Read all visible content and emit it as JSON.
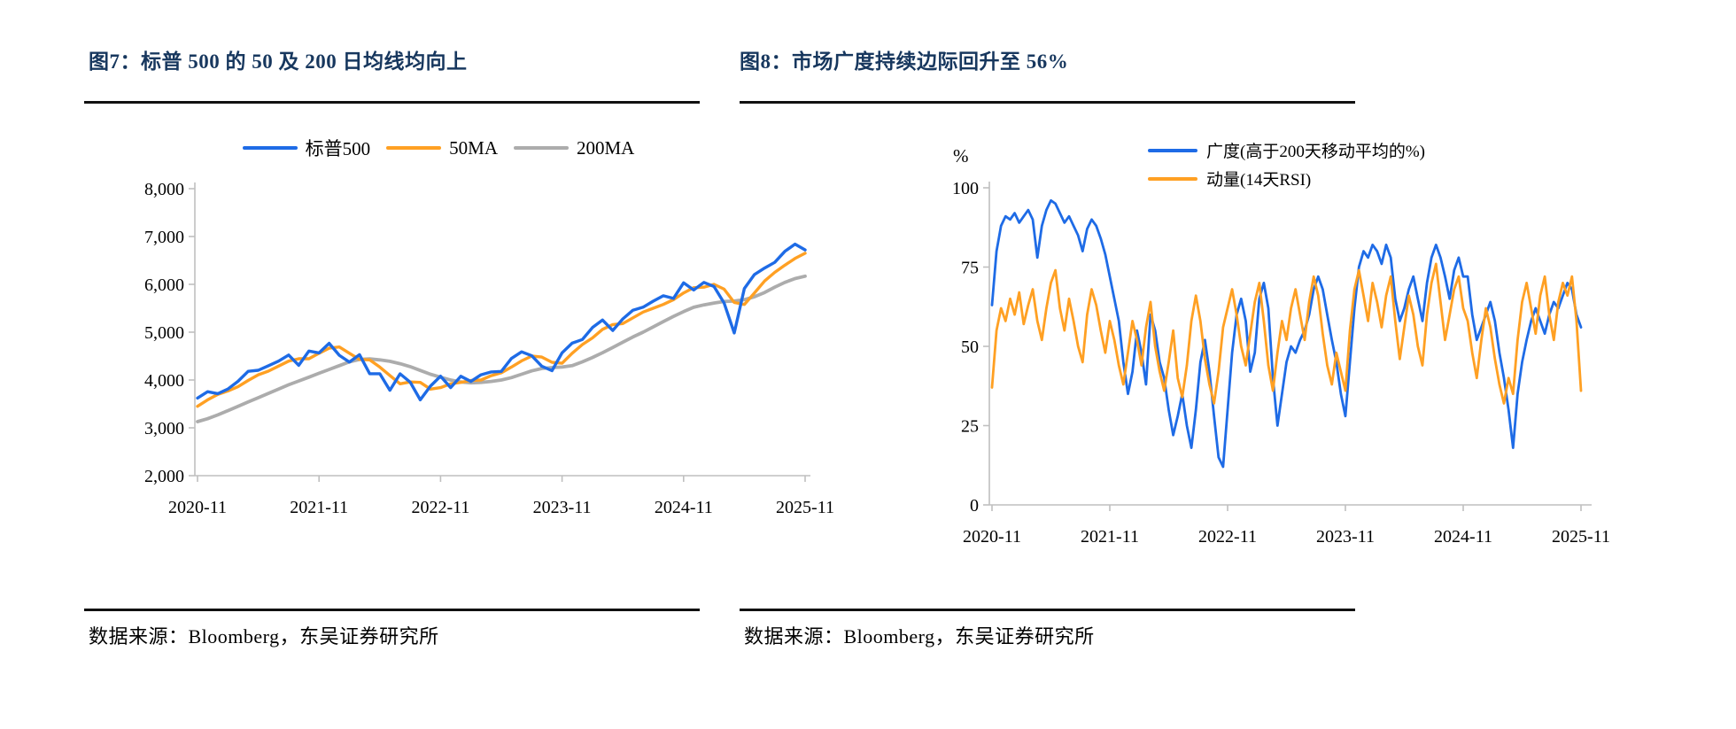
{
  "figure7": {
    "title": "图7：标普 500 的 50 及 200 日均线均向上",
    "source": "数据来源：Bloomberg，东吴证券研究所"
  },
  "figure8": {
    "title": "图8：市场广度持续边际回升至 56%",
    "source": "数据来源：Bloomberg，东吴证券研究所",
    "y_axis_unit": "%"
  },
  "colors": {
    "title_navy": "#17375e",
    "series_blue": "#1e6be6",
    "series_orange": "#ffa023",
    "series_gray": "#acacac",
    "axis_gray": "#bfbfbf",
    "rule_black": "#111111"
  },
  "chart_data": [
    {
      "id": "fig7",
      "type": "line",
      "title": "图7：标普 500 的 50 及 200 日均线均向上",
      "xlabel": "",
      "ylabel": "",
      "x_frequency": "monthly",
      "x_range": "2020-11 to 2025-11",
      "x_tick_labels": [
        "2020-11",
        "2021-11",
        "2022-11",
        "2023-11",
        "2024-11",
        "2025-11"
      ],
      "ylim": [
        2000,
        8000
      ],
      "y_ticks": [
        2000,
        3000,
        4000,
        5000,
        6000,
        7000,
        8000
      ],
      "y_tick_labels": [
        "2,000",
        "3,000",
        "4,000",
        "5,000",
        "6,000",
        "7,000",
        "8,000"
      ],
      "grid": false,
      "legend_position": "top-center",
      "series": [
        {
          "name": "标普500",
          "color": "#1e6be6",
          "width": 3.4,
          "values": [
            3622,
            3756,
            3714,
            3811,
            3973,
            4181,
            4204,
            4298,
            4395,
            4523,
            4308,
            4605,
            4567,
            4766,
            4516,
            4374,
            4530,
            4132,
            4132,
            3785,
            4130,
            3955,
            3586,
            3872,
            4080,
            3840,
            4077,
            3970,
            4109,
            4169,
            4180,
            4450,
            4589,
            4508,
            4288,
            4194,
            4568,
            4770,
            4846,
            5096,
            5254,
            5036,
            5278,
            5460,
            5522,
            5648,
            5762,
            5705,
            6032,
            5882,
            6041,
            5955,
            5612,
            4983,
            5912,
            6205,
            6340,
            6460,
            6688,
            6840,
            6720
          ]
        },
        {
          "name": "50MA",
          "color": "#ffa023",
          "width": 3.4,
          "values": [
            3450,
            3585,
            3700,
            3770,
            3860,
            3990,
            4110,
            4185,
            4290,
            4395,
            4445,
            4445,
            4560,
            4665,
            4690,
            4560,
            4430,
            4420,
            4270,
            4095,
            3920,
            3960,
            3950,
            3810,
            3840,
            3920,
            3950,
            3990,
            4000,
            4090,
            4150,
            4270,
            4400,
            4500,
            4480,
            4370,
            4350,
            4560,
            4740,
            4880,
            5060,
            5160,
            5180,
            5300,
            5420,
            5500,
            5580,
            5680,
            5820,
            5930,
            5940,
            6000,
            5900,
            5620,
            5580,
            5820,
            6070,
            6250,
            6400,
            6540,
            6650
          ]
        },
        {
          "name": "200MA",
          "color": "#acacac",
          "width": 3.8,
          "values": [
            3130,
            3190,
            3270,
            3360,
            3450,
            3540,
            3630,
            3720,
            3810,
            3900,
            3980,
            4060,
            4140,
            4220,
            4300,
            4380,
            4430,
            4440,
            4420,
            4390,
            4340,
            4280,
            4200,
            4120,
            4060,
            4000,
            3960,
            3940,
            3950,
            3970,
            4000,
            4050,
            4120,
            4190,
            4240,
            4260,
            4270,
            4300,
            4380,
            4470,
            4570,
            4680,
            4790,
            4900,
            5000,
            5110,
            5220,
            5330,
            5430,
            5520,
            5570,
            5610,
            5640,
            5650,
            5680,
            5740,
            5830,
            5940,
            6040,
            6120,
            6170
          ]
        }
      ]
    },
    {
      "id": "fig8",
      "type": "line",
      "title": "图8：市场广度持续边际回升至 56%",
      "xlabel": "",
      "ylabel": "%",
      "x_frequency": "biweekly",
      "x_range": "2020-11 to 2025-11",
      "x_tick_labels": [
        "2020-11",
        "2021-11",
        "2022-11",
        "2023-11",
        "2024-11",
        "2025-11"
      ],
      "ylim": [
        0,
        100
      ],
      "y_ticks": [
        0,
        25,
        50,
        75,
        100
      ],
      "y_tick_labels": [
        "0",
        "25",
        "50",
        "75",
        "100"
      ],
      "grid": false,
      "legend_position": "top-right",
      "final_value_breadth_pct": 56,
      "series": [
        {
          "name": "广度(高于200天移动平均的%)",
          "color": "#1e6be6",
          "width": 2.8,
          "values": [
            63,
            80,
            88,
            91,
            90,
            92,
            89,
            91,
            93,
            90,
            78,
            88,
            93,
            96,
            95,
            92,
            89,
            91,
            88,
            85,
            80,
            87,
            90,
            88,
            84,
            79,
            72,
            65,
            58,
            45,
            35,
            42,
            55,
            48,
            38,
            60,
            55,
            45,
            40,
            30,
            22,
            28,
            35,
            25,
            18,
            30,
            45,
            52,
            42,
            28,
            15,
            12,
            30,
            48,
            60,
            65,
            58,
            42,
            48,
            65,
            70,
            62,
            40,
            25,
            35,
            45,
            50,
            48,
            52,
            55,
            60,
            68,
            72,
            68,
            60,
            52,
            45,
            35,
            28,
            45,
            62,
            75,
            80,
            78,
            82,
            80,
            76,
            82,
            78,
            65,
            58,
            62,
            68,
            72,
            65,
            58,
            70,
            78,
            82,
            78,
            72,
            65,
            74,
            78,
            72,
            72,
            60,
            52,
            56,
            60,
            64,
            58,
            48,
            40,
            30,
            18,
            35,
            45,
            52,
            58,
            62,
            58,
            54,
            60,
            64,
            62,
            66,
            70,
            68,
            60,
            56
          ]
        },
        {
          "name": "动量(14天RSI)",
          "color": "#ffa023",
          "width": 2.8,
          "values": [
            37,
            55,
            62,
            58,
            65,
            60,
            67,
            57,
            63,
            68,
            58,
            52,
            62,
            70,
            74,
            62,
            55,
            65,
            58,
            50,
            45,
            60,
            68,
            63,
            55,
            48,
            58,
            52,
            44,
            38,
            48,
            58,
            52,
            44,
            56,
            64,
            50,
            42,
            36,
            45,
            55,
            40,
            34,
            44,
            58,
            66,
            58,
            46,
            38,
            32,
            42,
            56,
            62,
            68,
            60,
            50,
            44,
            54,
            64,
            70,
            58,
            44,
            36,
            48,
            58,
            52,
            62,
            68,
            60,
            52,
            64,
            72,
            66,
            54,
            44,
            38,
            48,
            42,
            36,
            55,
            68,
            74,
            66,
            58,
            70,
            64,
            56,
            66,
            72,
            58,
            46,
            56,
            66,
            60,
            50,
            44,
            60,
            70,
            76,
            64,
            52,
            60,
            68,
            72,
            62,
            58,
            48,
            40,
            52,
            62,
            56,
            46,
            38,
            32,
            40,
            35,
            52,
            64,
            70,
            62,
            54,
            66,
            72,
            60,
            52,
            64,
            70,
            66,
            72,
            58,
            36
          ]
        }
      ]
    }
  ]
}
